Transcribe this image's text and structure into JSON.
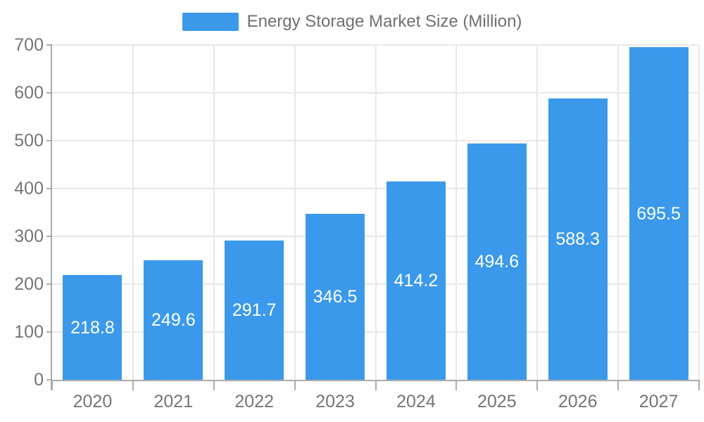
{
  "chart_data": {
    "type": "bar",
    "title": "Energy Storage Market Size (Million)",
    "legend": "Energy Storage Market Size (Million)",
    "legend_position": "top",
    "categories": [
      "2020",
      "2021",
      "2022",
      "2023",
      "2024",
      "2025",
      "2026",
      "2027"
    ],
    "values": [
      218.8,
      249.6,
      291.7,
      346.5,
      414.2,
      494.6,
      588.3,
      695.5
    ],
    "value_labels": [
      "218.8",
      "249.6",
      "291.7",
      "346.5",
      "414.2",
      "494.6",
      "588.3",
      "695.5"
    ],
    "xlabel": "",
    "ylabel": "",
    "ylim": [
      0,
      700
    ],
    "yticks": [
      0,
      100,
      200,
      300,
      400,
      500,
      600,
      700
    ],
    "grid": true,
    "colors": {
      "bar": "#3b99ec",
      "axis": "#ababab",
      "grid": "#e8e8e8",
      "tick_text": "#757575",
      "value_text": "#ffffff",
      "background": "#ffffff"
    }
  }
}
